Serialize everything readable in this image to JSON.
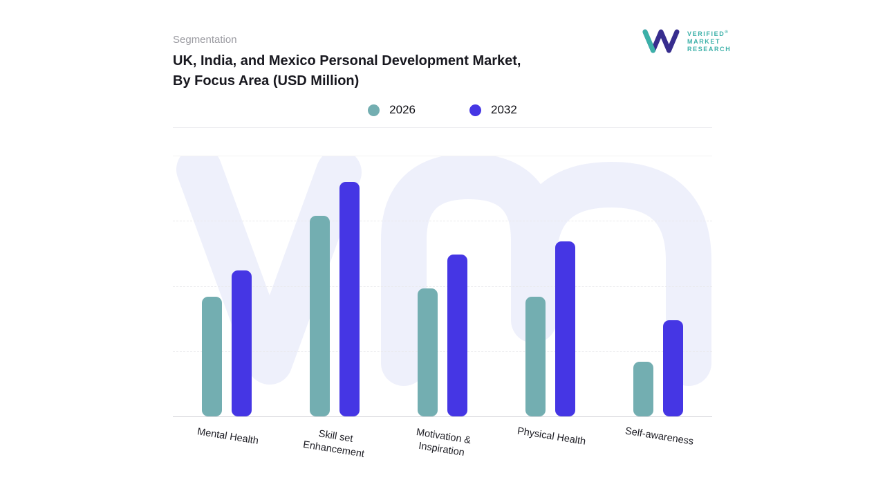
{
  "header": {
    "eyebrow": "Segmentation",
    "title_line1": "UK, India, and Mexico Personal Development Market,",
    "title_line2": "By Focus Area (USD Million)"
  },
  "logo": {
    "line1": "VERIFIED",
    "line2": "MARKET",
    "line3": "RESEARCH",
    "reg_mark": "®",
    "mark_color": "#372d8e",
    "accent_color": "#3bb0a8"
  },
  "chart_data": {
    "type": "bar",
    "title": "UK, India, and Mexico Personal Development Market, By Focus Area (USD Million)",
    "ylabel": "USD Million",
    "ylim": [
      0,
      100
    ],
    "grid": "horizontal-dashed",
    "legend_position": "top",
    "categories": [
      "Mental Health",
      "Skill set Enhancement",
      "Motivation & Inspiration",
      "Physical Health",
      "Self-awareness"
    ],
    "category_label_lines": [
      [
        "Mental Health"
      ],
      [
        "Skill set",
        "Enhancement"
      ],
      [
        "Motivation &",
        "Inspiration"
      ],
      [
        "Physical Health"
      ],
      [
        "Self-awareness"
      ]
    ],
    "series": [
      {
        "name": "2026",
        "color": "#73aeb1",
        "values": [
          46,
          77,
          49,
          46,
          21
        ]
      },
      {
        "name": "2032",
        "color": "#4536e4",
        "values": [
          56,
          90,
          62,
          67,
          37
        ]
      }
    ],
    "watermark_color": "#eef0fb"
  }
}
